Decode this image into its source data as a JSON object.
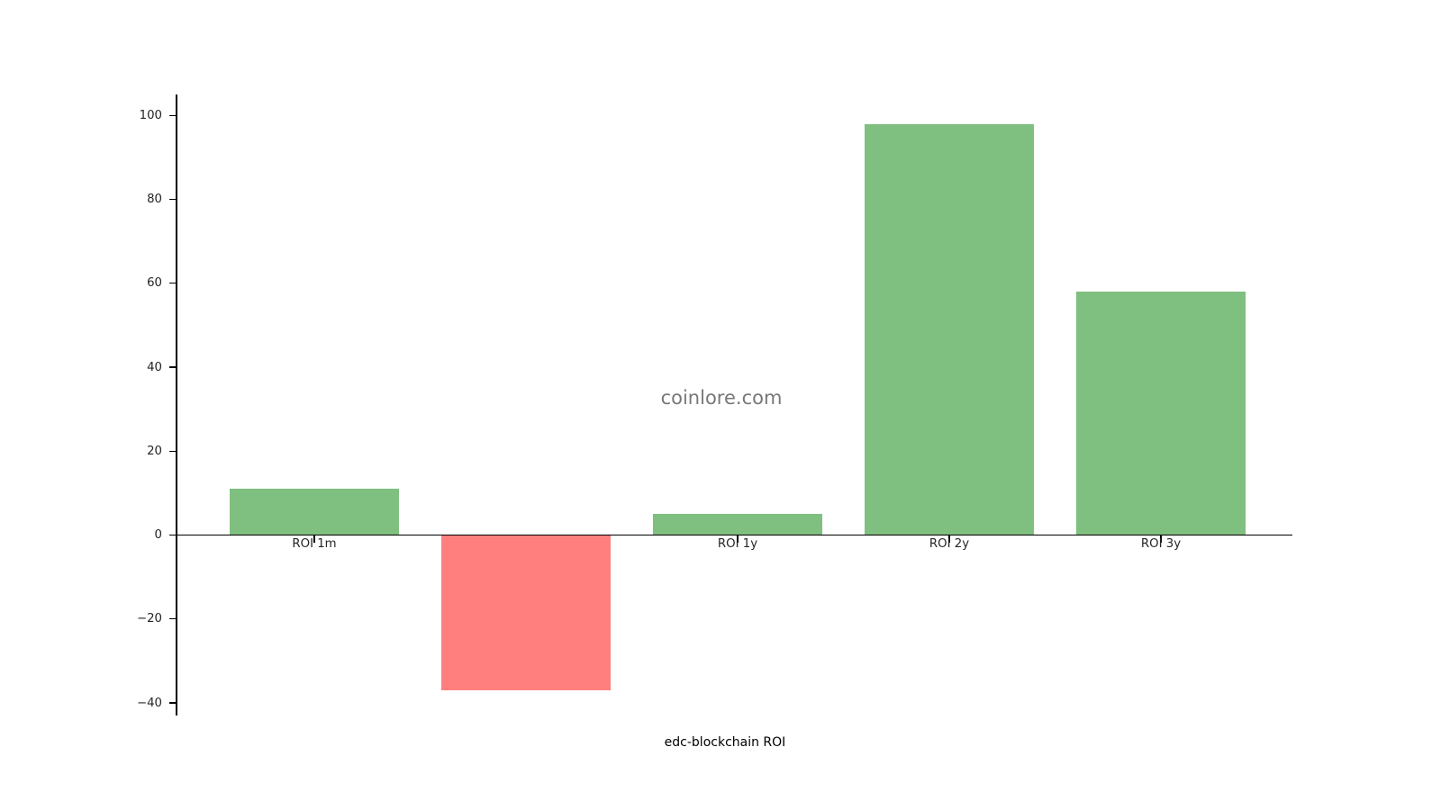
{
  "page": {
    "background_color": "#ffffff"
  },
  "chart_data": {
    "type": "bar",
    "title": "",
    "xlabel": "edc-blockchain ROI",
    "ylabel": "",
    "watermark": "coinlore.com",
    "categories": [
      "ROI 1m",
      "",
      "ROI 1y",
      "ROI 2y",
      "ROI 3y"
    ],
    "values": [
      11,
      -37,
      5,
      98,
      58
    ],
    "positive_color": "#7fbf7f",
    "negative_color": "#ff7f7f",
    "axis_color": "#000000",
    "tick_label_color": "#262626",
    "watermark_color": "#787878",
    "yticks": [
      100,
      80,
      60,
      40,
      20,
      0,
      -20,
      -40
    ],
    "ylim": [
      -43,
      105
    ],
    "grid": false,
    "legend": false,
    "note": "second bar tick label is hidden behind the negative bar"
  }
}
